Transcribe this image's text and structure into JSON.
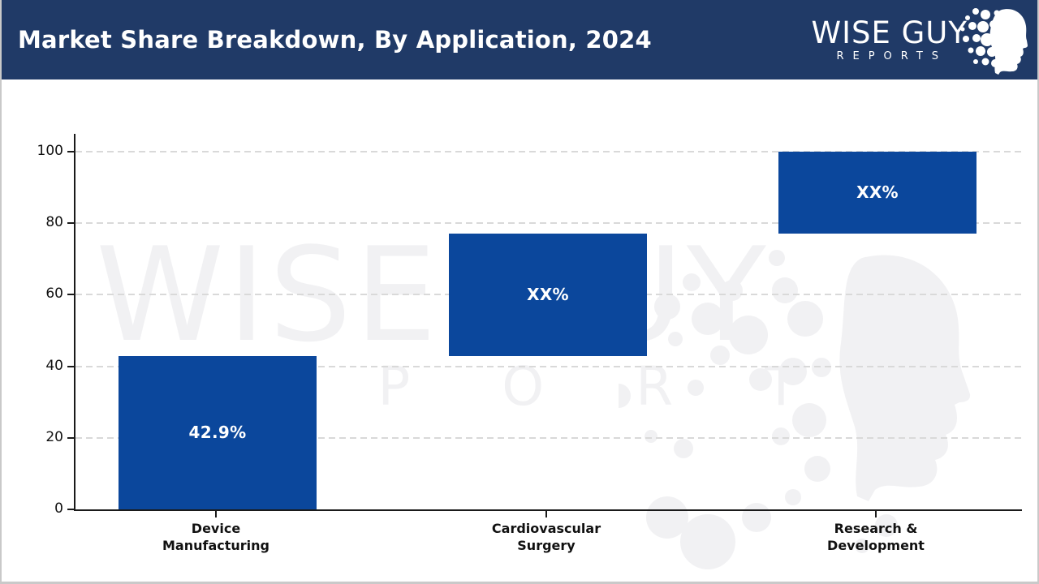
{
  "header": {
    "title": "Market Share Breakdown, By Application, 2024",
    "brand": {
      "line1": "WISE GUY",
      "line2": "REPORTS"
    }
  },
  "watermark": {
    "line1": "WISE GUY",
    "line2": "R E P O R T S"
  },
  "colors": {
    "header_bg": "#203a67",
    "bar": "#0b479c",
    "grid": "#d9d9d9",
    "watermark": "#f1f1f3",
    "axis": "#1a1a1a",
    "value_label": "#ffffff",
    "page_border": "#c9c9c9"
  },
  "chart_data": {
    "type": "bar",
    "subtype": "floating-segment-waterfall",
    "title": "Market Share Breakdown, By Application, 2024",
    "categories": [
      [
        "Device",
        "Manufacturing"
      ],
      [
        "Cardiovascular",
        "Surgery"
      ],
      [
        "Research &",
        "Development"
      ]
    ],
    "segments": [
      {
        "category": "Device Manufacturing",
        "start": 0,
        "end": 42.9,
        "label": "42.9%"
      },
      {
        "category": "Cardiovascular Surgery",
        "start": 42.9,
        "end": 77.2,
        "label": "XX%"
      },
      {
        "category": "Research & Development",
        "start": 77.2,
        "end": 100,
        "label": "XX%"
      }
    ],
    "yticks": [
      0,
      20,
      40,
      60,
      80,
      100
    ],
    "ylim": [
      0,
      100
    ],
    "xlabel": "",
    "ylabel": "",
    "grid": "horizontal-dashed",
    "legend": "none"
  }
}
